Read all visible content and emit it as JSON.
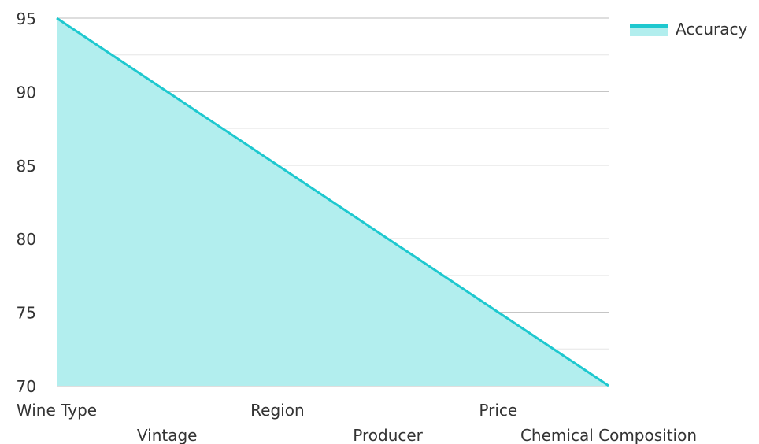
{
  "chart_data": {
    "type": "area",
    "categories": [
      "Wine Type",
      "Vintage",
      "Region",
      "Producer",
      "Price",
      "Chemical Composition"
    ],
    "series": [
      {
        "name": "Accuracy",
        "values": [
          95,
          90,
          85,
          80,
          75,
          70
        ]
      }
    ],
    "ylim": [
      70,
      95
    ],
    "y_ticks": [
      70,
      75,
      80,
      85,
      90,
      95
    ],
    "grid": true,
    "legend_position": "top-right",
    "colors": {
      "line": "#1ec8cf",
      "fill": "#b2eeee",
      "grid_major": "#bdbdbd",
      "grid_minor": "#e6e6e6"
    }
  }
}
